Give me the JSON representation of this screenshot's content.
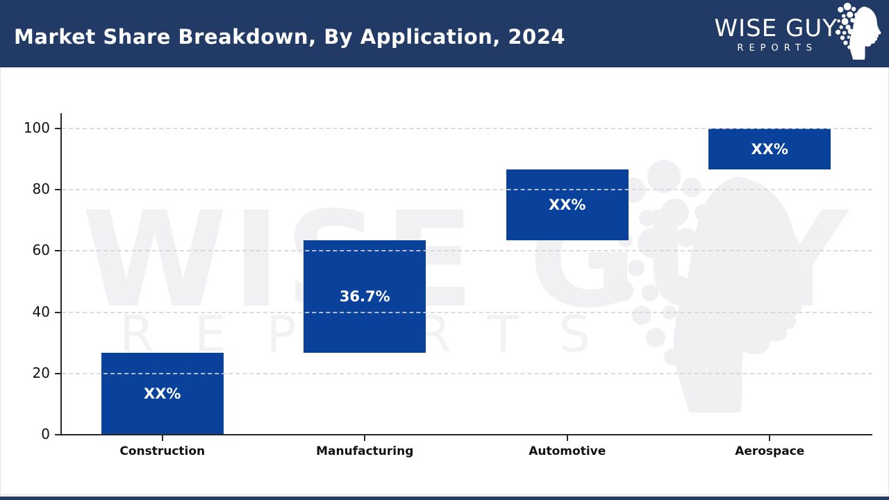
{
  "header": {
    "title": "Market Share Breakdown, By Application, 2024",
    "brand": {
      "wordmark": "WISE GUY",
      "subtext": "REPORTS"
    }
  },
  "watermark": {
    "wordmark": "WISE GUY",
    "subtext": "REPORTS"
  },
  "chart_data": {
    "type": "bar",
    "subtype": "waterfall",
    "title": "Market Share Breakdown, By Application, 2024",
    "categories": [
      "Construction",
      "Manufacturing",
      "Automotive",
      "Aerospace"
    ],
    "segments": [
      {
        "category": "Construction",
        "start": 0,
        "end": 26.8,
        "value": 26.8,
        "label": "XX%"
      },
      {
        "category": "Manufacturing",
        "start": 26.8,
        "end": 63.5,
        "value": 36.7,
        "label": "36.7%"
      },
      {
        "category": "Automotive",
        "start": 63.5,
        "end": 86.6,
        "value": 23.1,
        "label": "XX%"
      },
      {
        "category": "Aerospace",
        "start": 86.6,
        "end": 100,
        "value": 13.4,
        "label": "XX%"
      }
    ],
    "xlabel": "",
    "ylabel": "",
    "yticks": [
      0,
      20,
      40,
      60,
      80,
      100
    ],
    "ylim": [
      0,
      105
    ],
    "grid": "horizontal-dashed",
    "legend": null,
    "bar_color": "#0a429b",
    "bar_label_color": "#ffffff"
  },
  "colors": {
    "header_bg": "#223a66",
    "footer_bg": "#223a66",
    "bar": "#0a429b",
    "axis": "#262626",
    "gridline": "#d8d8d8",
    "watermark": "#f1f1f4"
  }
}
